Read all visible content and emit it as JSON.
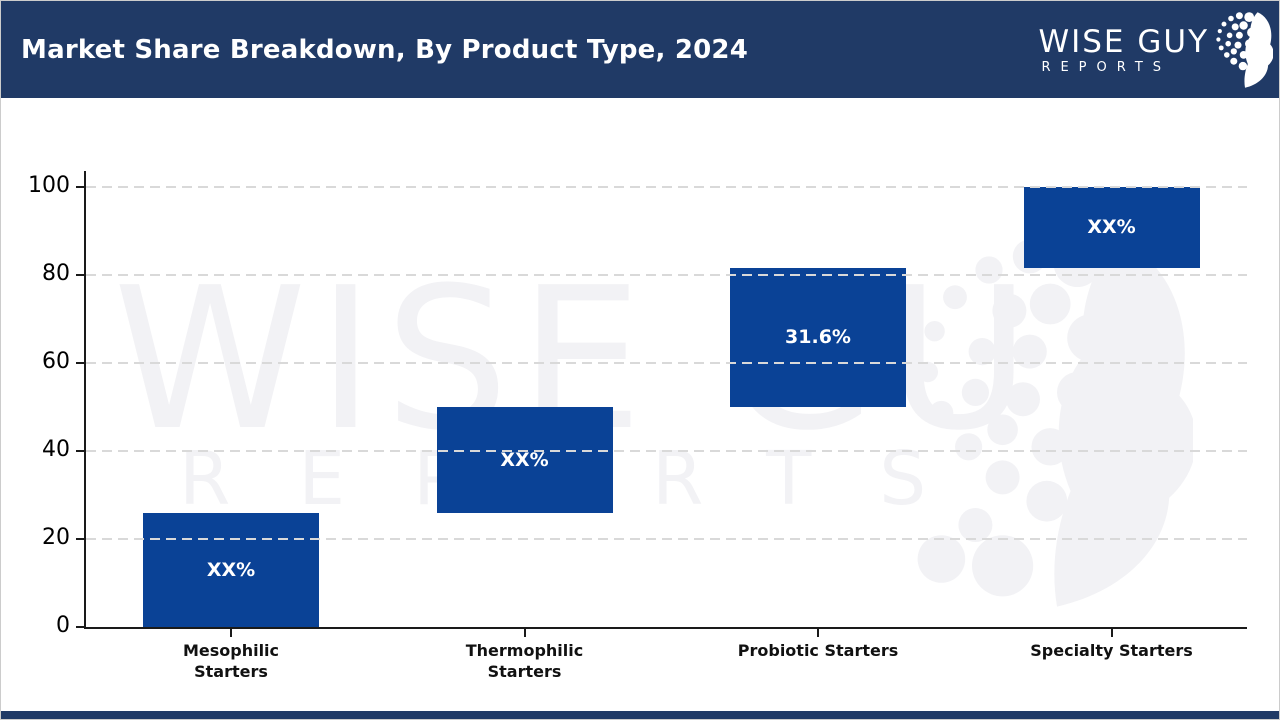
{
  "header": {
    "title": "Market Share Breakdown, By Product Type, 2024",
    "logo": {
      "wordmark": "WISE GUY",
      "subtext": "REPORTS"
    }
  },
  "watermark": {
    "wordmark": "WISE GU",
    "subtext": "REPORTS"
  },
  "chart_data": {
    "type": "bar",
    "subtype": "waterfall-segment",
    "title": "Market Share Breakdown, By Product Type, 2024",
    "categories": [
      "Mesophilic\nStarters",
      "Thermophilic\nStarters",
      "Probiotic Starters",
      "Specialty Starters"
    ],
    "segments": [
      {
        "category": "Mesophilic Starters",
        "start": 0,
        "end": 26,
        "size": 26,
        "label": "XX%"
      },
      {
        "category": "Thermophilic Starters",
        "start": 26,
        "end": 50,
        "size": 24,
        "label": "XX%"
      },
      {
        "category": "Probiotic Starters",
        "start": 50,
        "end": 81.6,
        "size": 31.6,
        "label": "31.6%"
      },
      {
        "category": "Specialty Starters",
        "start": 81.6,
        "end": 100,
        "size": 18.4,
        "label": "XX%"
      }
    ],
    "yticks": [
      0,
      20,
      40,
      60,
      80,
      100
    ],
    "ylim": [
      0,
      104
    ],
    "xlabel": "",
    "ylabel": "",
    "legend": "none",
    "grid": {
      "axis": "y",
      "style": "dashed",
      "drawn_over_bars": true
    }
  },
  "colors": {
    "header_bg": "#203a66",
    "footer_bg": "#203a66",
    "bar": "#0a4296",
    "gridline": "#d9d9d9",
    "axis": "#1a1a1a",
    "watermark": "#f2f2f5"
  }
}
